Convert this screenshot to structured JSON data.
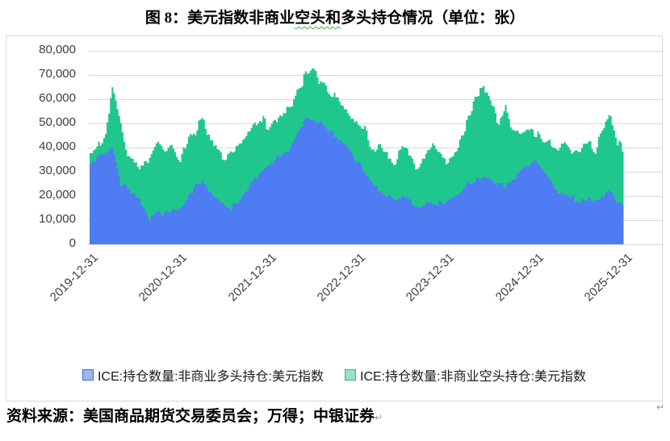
{
  "title": {
    "prefix": "图 8：美元指数非商业",
    "wavy": "空头和",
    "suffix": "多头持仓情况（单位：张）"
  },
  "source_line": "资料来源：美国商品期货交易委员会；万得；中银证券",
  "paragraph_mark": "↵",
  "legend": [
    {
      "label": "ICE:持仓数量:非商业多头持仓:美元指数",
      "swatch_fill": "#9db4f0",
      "swatch_border": "#3c66dd"
    },
    {
      "label": "ICE:持仓数量:非商业空头持仓:美元指数",
      "swatch_fill": "#96e2c3",
      "swatch_border": "#25b985"
    }
  ],
  "chart_data": {
    "type": "area",
    "title": "图 8：美元指数非商业空头和多头持仓情况（单位：张）",
    "xlabel": "",
    "ylabel": "",
    "ylim": [
      0,
      80000
    ],
    "grid": "horizontal",
    "legend_position": "bottom",
    "y_tick_labels": [
      "80,000",
      "70,000",
      "60,000",
      "50,000",
      "40,000",
      "30,000",
      "20,000",
      "10,000",
      "0"
    ],
    "x_tick_labels": [
      "2019-12-31",
      "2020-12-31",
      "2021-12-31",
      "2022-12-31",
      "2023-12-31",
      "2024-12-31",
      "2025-12-31"
    ],
    "categories": [
      "2019-12",
      "2020-01",
      "2020-02",
      "2020-03",
      "2020-04",
      "2020-05",
      "2020-06",
      "2020-07",
      "2020-08",
      "2020-09",
      "2020-10",
      "2020-11",
      "2020-12",
      "2021-01",
      "2021-02",
      "2021-03",
      "2021-04",
      "2021-05",
      "2021-06",
      "2021-07",
      "2021-08",
      "2021-09",
      "2021-10",
      "2021-11",
      "2021-12",
      "2022-01",
      "2022-02",
      "2022-03",
      "2022-04",
      "2022-05",
      "2022-06",
      "2022-07",
      "2022-08",
      "2022-09",
      "2022-10",
      "2022-11",
      "2022-12",
      "2023-01",
      "2023-02",
      "2023-03",
      "2023-04",
      "2023-05",
      "2023-06",
      "2023-07",
      "2023-08",
      "2023-09",
      "2023-10",
      "2023-11",
      "2023-12",
      "2024-01",
      "2024-02",
      "2024-03",
      "2024-04",
      "2024-05",
      "2024-06",
      "2024-07",
      "2024-08",
      "2024-09",
      "2024-10",
      "2024-11",
      "2024-12",
      "2025-01",
      "2025-02",
      "2025-03",
      "2025-04",
      "2025-05",
      "2025-06",
      "2025-07",
      "2025-08",
      "2025-09",
      "2025-10",
      "2025-11",
      "2025-12"
    ],
    "series": [
      {
        "name": "ICE:持仓数量:非商业多头持仓:美元指数",
        "color": "#4e7cf3",
        "values": [
          33000,
          36000,
          38000,
          40000,
          25000,
          23000,
          21000,
          17000,
          10000,
          14000,
          13000,
          14000,
          14000,
          18000,
          24000,
          26000,
          22000,
          19000,
          16000,
          15000,
          18000,
          22000,
          26000,
          30000,
          32000,
          35000,
          38000,
          40000,
          46000,
          52000,
          51000,
          50000,
          48000,
          45000,
          42000,
          38000,
          34000,
          30000,
          26000,
          22000,
          20000,
          18000,
          20000,
          18000,
          15000,
          16000,
          17000,
          17000,
          18000,
          20000,
          22000,
          25000,
          27000,
          28000,
          27000,
          25000,
          24000,
          26000,
          30000,
          33000,
          34000,
          30000,
          26000,
          22000,
          20000,
          19000,
          18000,
          19000,
          18000,
          20000,
          22000,
          17000,
          16000
        ]
      },
      {
        "name": "ICE:持仓数量:非商业空头持仓:美元指数",
        "color": "#1fc78c",
        "values": [
          37000,
          40000,
          45000,
          64000,
          52000,
          38000,
          33000,
          31000,
          36000,
          43000,
          38000,
          42000,
          34000,
          42000,
          46000,
          52000,
          45000,
          40000,
          36000,
          38000,
          42000,
          45000,
          49000,
          52000,
          48000,
          52000,
          55000,
          58000,
          63000,
          70000,
          73000,
          66000,
          64000,
          61000,
          58000,
          54000,
          50000,
          48000,
          38000,
          41000,
          36000,
          33000,
          42000,
          37000,
          31000,
          36000,
          42000,
          37000,
          35000,
          38000,
          44000,
          52000,
          60000,
          66000,
          58000,
          50000,
          56000,
          46000,
          46000,
          48000,
          46000,
          44000,
          42000,
          40000,
          42000,
          37000,
          40000,
          43000,
          38000,
          47000,
          53000,
          42000,
          38000
        ]
      }
    ]
  },
  "render": {
    "background": "#ffffff",
    "grid_color": "#d9d9d9",
    "border_color": "#d8d8d8",
    "axis_text_color": "#3d3d3d",
    "jitter_long": 1700,
    "jitter_short": 2900
  }
}
